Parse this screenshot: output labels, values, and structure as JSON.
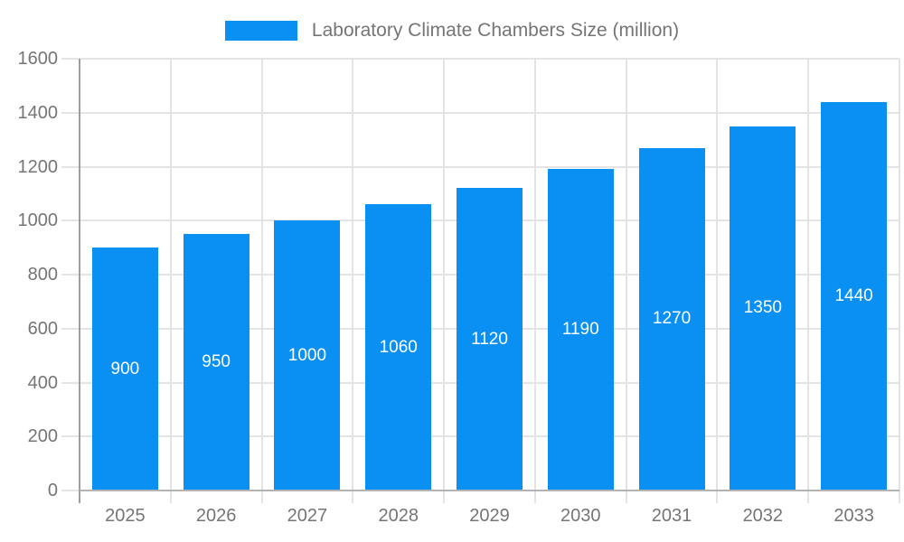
{
  "chart_data": {
    "type": "bar",
    "title": "Laboratory Climate Chambers Size (million)",
    "categories": [
      "2025",
      "2026",
      "2027",
      "2028",
      "2029",
      "2030",
      "2031",
      "2032",
      "2033"
    ],
    "series": [
      {
        "name": "Laboratory Climate Chambers Size (million)",
        "values": [
          900,
          950,
          1000,
          1060,
          1120,
          1190,
          1270,
          1350,
          1440
        ],
        "color": "#0A90F2"
      }
    ],
    "value_labels": [
      "900",
      "950",
      "1000",
      "1060",
      "1120",
      "1190",
      "1270",
      "1350",
      "1440"
    ],
    "xlabel": "",
    "ylabel": "",
    "ylim": [
      0,
      1600
    ],
    "y_ticks": [
      0,
      200,
      400,
      600,
      800,
      1000,
      1200,
      1400,
      1600
    ],
    "grid": true,
    "legend_position": "top",
    "colors": {
      "bar": "#0A90F2",
      "value_label_text": "#FFFFFF",
      "axis_text": "#757575",
      "legend_text": "#757575",
      "gridline": "#E4E4E4",
      "y_axis_line": "#9E9E9E",
      "baseline": "#B3B3B3"
    }
  }
}
